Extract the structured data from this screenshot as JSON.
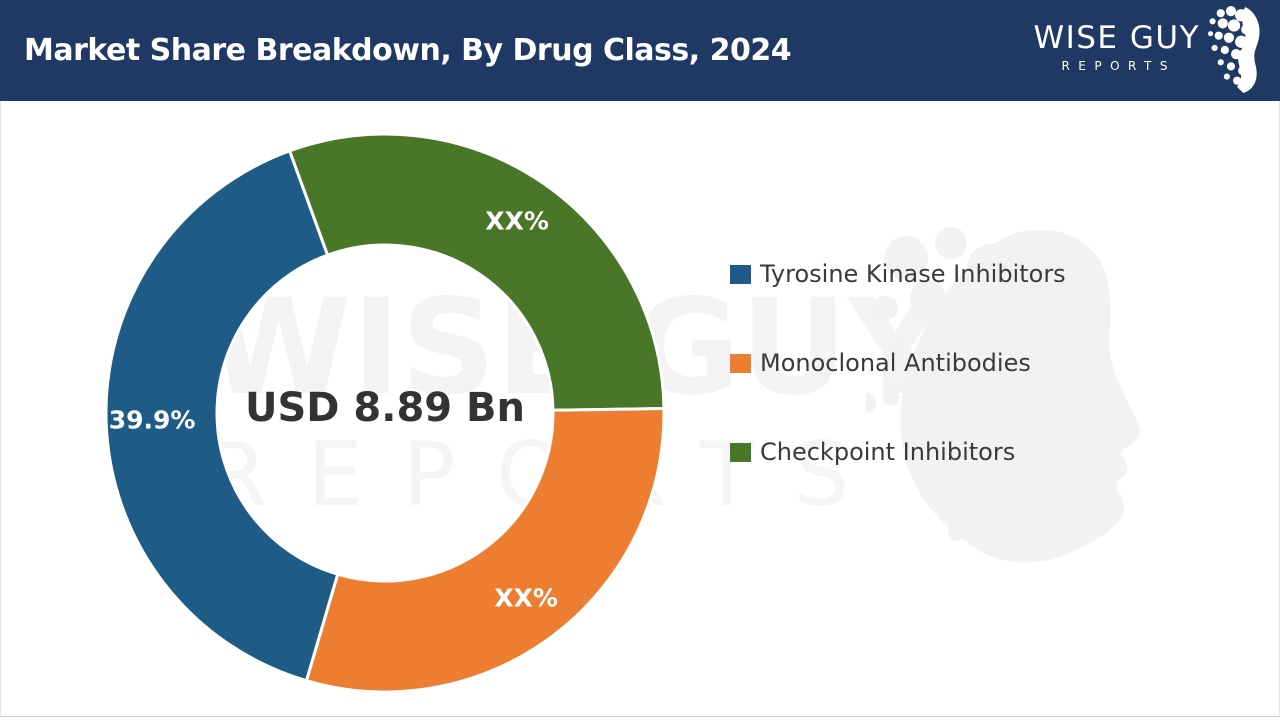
{
  "header": {
    "title": "Market Share Breakdown, By Drug Class, 2024",
    "brand_line1": "WISE GUY",
    "brand_line2": "REPORTS",
    "bg_color": "#1F3864",
    "logo_icon": "dotted-head-profile-icon"
  },
  "watermark": {
    "line1": "WISE GUY",
    "line2": "REPORTS",
    "face_icon": "dotted-head-profile-watermark"
  },
  "chart": {
    "center_label": "USD 8.89 Bn",
    "start_angle_deg": -20,
    "draw_order": [
      2,
      1,
      0
    ],
    "slices": [
      {
        "id": "tyrosine-kinase-inhibitors",
        "label": "Tyrosine Kinase Inhibitors",
        "value": 39.9,
        "display": "39.9%",
        "color": "#1F5B87"
      },
      {
        "id": "monoclonal-antibodies",
        "label": "Monoclonal Antibodies",
        "value": 29.8,
        "display": "XX%",
        "color": "#ED7D31"
      },
      {
        "id": "checkpoint-inhibitors",
        "label": "Checkpoint Inhibitors",
        "value": 30.3,
        "display": "XX%",
        "color": "#4A7628"
      }
    ]
  },
  "chart_data": {
    "type": "pie",
    "donut": true,
    "title": "Market Share Breakdown, By Drug Class, 2024",
    "categories": [
      "Tyrosine Kinase Inhibitors",
      "Monoclonal Antibodies",
      "Checkpoint Inhibitors"
    ],
    "values": [
      39.9,
      29.8,
      30.3
    ],
    "value_labels": [
      "39.9%",
      "XX%",
      "XX%"
    ],
    "colors": [
      "#1F5B87",
      "#ED7D31",
      "#4A7628"
    ],
    "center_text": "USD 8.89 Bn",
    "legend_position": "right",
    "start_angle_deg_clockwise_from_top": -20
  }
}
